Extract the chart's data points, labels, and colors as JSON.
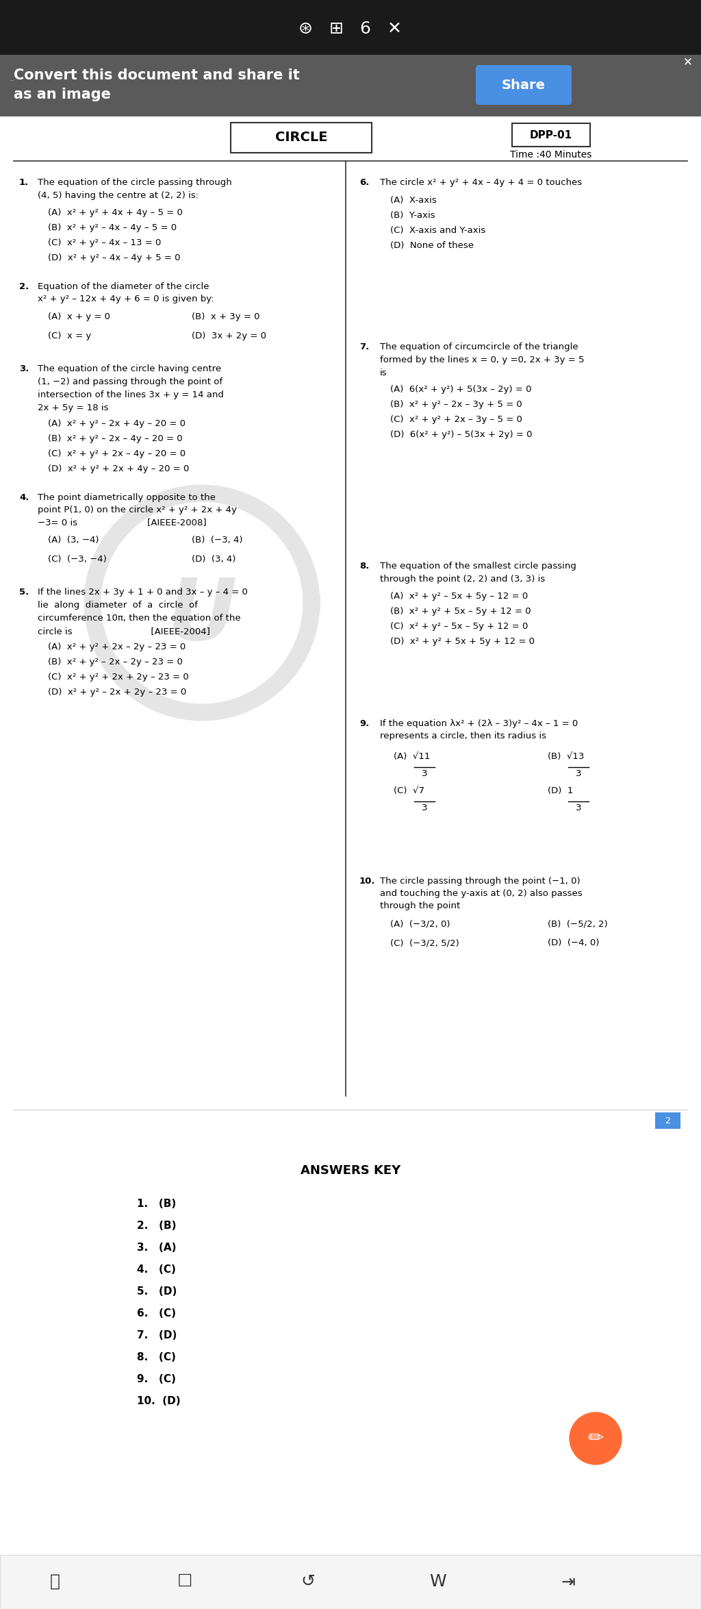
{
  "bg_top_bar": "#1a1a1a",
  "bg_share_bar": "#4a4a4a",
  "bg_main": "#ffffff",
  "share_btn_color": "#4a90e2",
  "title": "CIRCLE",
  "dpp": "DPP-01",
  "time": "Time :40 Minutes",
  "questions": [
    {
      "num": "1.",
      "text": "The equation of the circle passing through\n(4, 5) having the centre at (2, 2) is:",
      "options": [
        "(A)  x² + y² + 4x + 4y – 5 = 0",
        "(B)  x² + y² – 4x – 4y – 5 = 0",
        "(C)  x² + y² – 4x – 13 = 0",
        "(D)  x² + y² – 4x – 4y + 5 = 0"
      ]
    },
    {
      "num": "2.",
      "text": "Equation of the diameter of the circle\nx² + y² – 12x + 4y + 6 = 0 is given by:",
      "options_2col": [
        [
          "(A)  x + y = 0",
          "(B)  x + 3y = 0"
        ],
        [
          "(C)  x = y",
          "(D)  3x + 2y = 0"
        ]
      ]
    },
    {
      "num": "3.",
      "text": "The equation of the circle having centre\n(1, −2) and passing through the point of\nintersection of the lines 3x + y = 14 and\n2x + 5y = 18 is",
      "options": [
        "(A)  x² + y² – 2x + 4y – 20 = 0",
        "(B)  x² + y² – 2x – 4y – 20 = 0",
        "(C)  x² + y² + 2x – 4y – 20 = 0",
        "(D)  x² + y² + 2x + 4y – 20 = 0"
      ]
    },
    {
      "num": "4.",
      "text": "The point diametrically opposite to the\npoint P(1, 0) on the circle x² + y² + 2x + 4y\n−3= 0 is                        [AIEEE-2008]",
      "options_2col": [
        [
          "(A)  (3, −4)",
          "(B)  (−3, 4)"
        ],
        [
          "(C)  (−3, −4)",
          "(D)  (3, 4)"
        ]
      ]
    },
    {
      "num": "5.",
      "text": "If the lines 2x + 3y + 1 + 0 and 3x – y – 4 = 0\nlie  along  diameter  of  a  circle  of\ncircumference 10π, then the equation of the\ncircle is                           [AIEEE-2004]",
      "options": [
        "(A)  x² + y² + 2x – 2y – 23 = 0",
        "(B)  x² + y² – 2x – 2y – 23 = 0",
        "(C)  x² + y² + 2x + 2y – 23 = 0",
        "(D)  x² + y² – 2x + 2y – 23 = 0"
      ]
    }
  ],
  "questions_right": [
    {
      "num": "6.",
      "text": "The circle x² + y² + 4x – 4y + 4 = 0 touches",
      "options": [
        "(A)  X-axis",
        "(B)  Y-axis",
        "(C)  X-axis and Y-axis",
        "(D)  None of these"
      ]
    },
    {
      "num": "7.",
      "text": "The equation of circumcircle of the triangle\nformed by the lines x = 0, y =0, 2x + 3y = 5\nis",
      "options": [
        "(A)  6(x² + y²) + 5(3x – 2y) = 0",
        "(B)  x² + y² – 2x – 3y + 5 = 0",
        "(C)  x² + y² + 2x – 3y – 5 = 0",
        "(D)  6(x² + y²) – 5(3x + 2y) = 0"
      ]
    },
    {
      "num": "8.",
      "text": "The equation of the smallest circle passing\nthrough the point (2, 2) and (3, 3) is",
      "options": [
        "(A)  x² + y² – 5x + 5y – 12 = 0",
        "(B)  x² + y² + 5x – 5y + 12 = 0",
        "(C)  x² + y² – 5x – 5y + 12 = 0",
        "(D)  x² + y² + 5x + 5y + 12 = 0"
      ]
    },
    {
      "num": "9.",
      "text": "If the equation λx² + (2λ – 3)y² – 4x – 1 = 0\nrepresents a circle, then its radius is",
      "options_frac": [
        [
          "(A)  √11 / 3",
          "(B)  √13 / 3"
        ],
        [
          "(C)  √7 / 3",
          "(D)  1 / 3"
        ]
      ]
    },
    {
      "num": "10.",
      "text": "The circle passing through the point (−1, 0)\nand touching the y-axis at (0, 2) also passes\nthrough the point",
      "options_2col": [
        [
          "(A)  (−3/2, 0)",
          "(B)  (−5/2, 2)"
        ],
        [
          "(C)  (−3/2, 5/2)",
          "(D)  (−4, 0)"
        ]
      ]
    }
  ],
  "answers_title": "ANSWERS KEY",
  "answers": [
    "1.   (B)",
    "2.   (B)",
    "3.   (A)",
    "4.   (C)",
    "5.   (D)",
    "6.   (C)",
    "7.   (D)",
    "8.   (C)",
    "9.   (C)",
    "10.  (D)"
  ]
}
